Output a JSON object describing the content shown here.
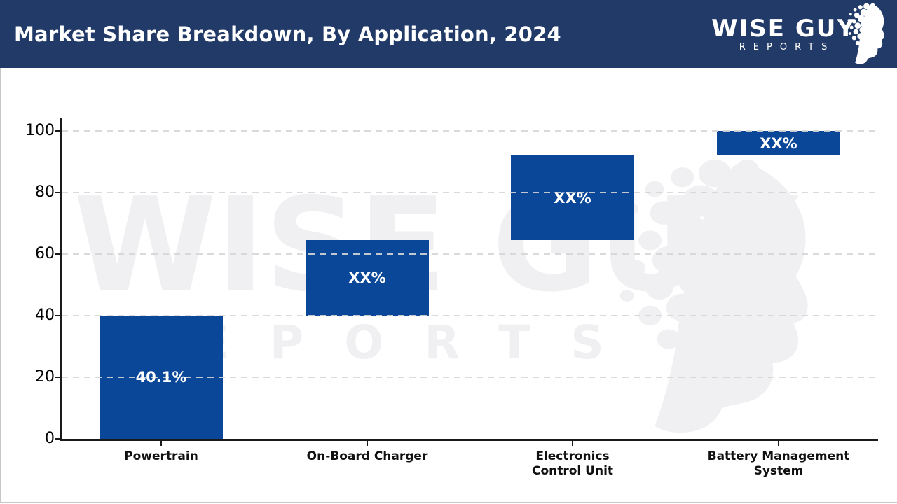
{
  "header": {
    "title": "Market Share Breakdown, By Application, 2024",
    "logo": {
      "line1": "WISE GUY",
      "line2": "REPORTS"
    }
  },
  "watermark": {
    "line1": "WISE GUY",
    "line2": "REPORTS"
  },
  "colors": {
    "header_bg": "#213a67",
    "bar_blue": "#0b4799",
    "grid_gray": "#d6d6d6",
    "axis_black": "#1a1a1a",
    "watermark_gray": "#f0f0f2",
    "title_text": "#ffffff"
  },
  "chart_data": {
    "type": "bar",
    "variant": "waterfall",
    "title": "Market Share Breakdown, By Application, 2024",
    "categories": [
      "Powertrain",
      "On-Board Charger",
      "Electronics\nControl Unit",
      "Battery Management\nSystem"
    ],
    "series": [
      {
        "name": "Market share (%)",
        "segments": [
          {
            "category": "Powertrain",
            "start": 0,
            "end": 40.1,
            "label": "40.1%"
          },
          {
            "category": "On-Board Charger",
            "start": 40.1,
            "end": 64.5,
            "label": "XX%"
          },
          {
            "category": "Electronics Control Unit",
            "start": 64.5,
            "end": 92,
            "label": "XX%"
          },
          {
            "category": "Battery Management System",
            "start": 92,
            "end": 100,
            "label": "XX%"
          }
        ]
      }
    ],
    "xlabel": "",
    "ylabel": "",
    "ylim": [
      0,
      100
    ],
    "yticks": [
      0,
      20,
      40,
      60,
      80,
      100
    ],
    "grid": "horizontal-dashed",
    "legend": "none",
    "bar_color": "#0b4799",
    "bar_label_color": "#ffffff"
  }
}
